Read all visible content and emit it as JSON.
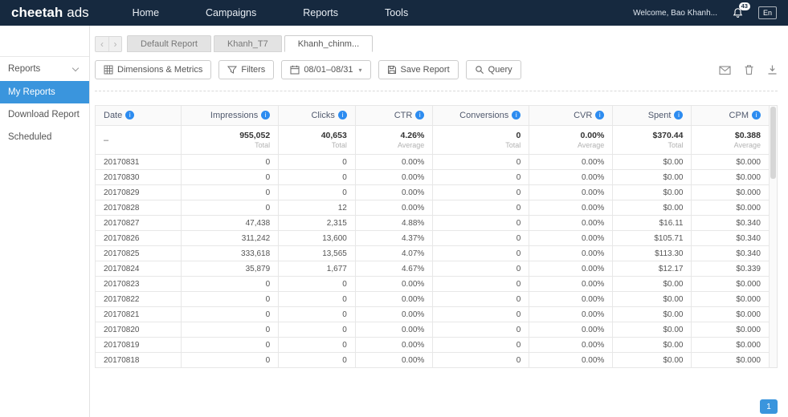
{
  "colors": {
    "navbar_bg": "#16293f",
    "accent": "#3a95dd",
    "info_icon": "#2d8cf0"
  },
  "navbar": {
    "brand_bold": "cheetah",
    "brand_light": "ads",
    "items": [
      {
        "label": "Home"
      },
      {
        "label": "Campaigns"
      },
      {
        "label": "Reports"
      },
      {
        "label": "Tools"
      }
    ],
    "welcome": "Welcome,  Bao Khanh...",
    "notification_count": "43",
    "language": "En"
  },
  "sidebar": {
    "section": "Reports",
    "items": [
      {
        "label": "My Reports",
        "active": true
      },
      {
        "label": "Download Report",
        "active": false
      },
      {
        "label": "Scheduled",
        "active": false
      }
    ]
  },
  "tabs": [
    {
      "label": "Default Report",
      "active": false
    },
    {
      "label": "Khanh_T7",
      "active": false
    },
    {
      "label": "Khanh_chinm...",
      "active": true
    }
  ],
  "toolbar": {
    "dimensions_metrics_label": "Dimensions & Metrics",
    "filters_label": "Filters",
    "date_range_label": "08/01–08/31",
    "save_report_label": "Save Report",
    "query_label": "Query"
  },
  "table": {
    "columns": [
      "Date",
      "Impressions",
      "Clicks",
      "CTR",
      "Conversions",
      "CVR",
      "Spent",
      "CPM"
    ],
    "summary": {
      "date": "–",
      "values": [
        "955,052",
        "40,653",
        "4.26%",
        "0",
        "0.00%",
        "$370.44",
        "$0.388"
      ],
      "sublabels": [
        "Total",
        "Total",
        "Average",
        "Total",
        "Average",
        "Total",
        "Average"
      ]
    },
    "rows": [
      [
        "20170831",
        "0",
        "0",
        "0.00%",
        "0",
        "0.00%",
        "$0.00",
        "$0.000"
      ],
      [
        "20170830",
        "0",
        "0",
        "0.00%",
        "0",
        "0.00%",
        "$0.00",
        "$0.000"
      ],
      [
        "20170829",
        "0",
        "0",
        "0.00%",
        "0",
        "0.00%",
        "$0.00",
        "$0.000"
      ],
      [
        "20170828",
        "0",
        "12",
        "0.00%",
        "0",
        "0.00%",
        "$0.00",
        "$0.000"
      ],
      [
        "20170827",
        "47,438",
        "2,315",
        "4.88%",
        "0",
        "0.00%",
        "$16.11",
        "$0.340"
      ],
      [
        "20170826",
        "311,242",
        "13,600",
        "4.37%",
        "0",
        "0.00%",
        "$105.71",
        "$0.340"
      ],
      [
        "20170825",
        "333,618",
        "13,565",
        "4.07%",
        "0",
        "0.00%",
        "$113.30",
        "$0.340"
      ],
      [
        "20170824",
        "35,879",
        "1,677",
        "4.67%",
        "0",
        "0.00%",
        "$12.17",
        "$0.339"
      ],
      [
        "20170823",
        "0",
        "0",
        "0.00%",
        "0",
        "0.00%",
        "$0.00",
        "$0.000"
      ],
      [
        "20170822",
        "0",
        "0",
        "0.00%",
        "0",
        "0.00%",
        "$0.00",
        "$0.000"
      ],
      [
        "20170821",
        "0",
        "0",
        "0.00%",
        "0",
        "0.00%",
        "$0.00",
        "$0.000"
      ],
      [
        "20170820",
        "0",
        "0",
        "0.00%",
        "0",
        "0.00%",
        "$0.00",
        "$0.000"
      ],
      [
        "20170819",
        "0",
        "0",
        "0.00%",
        "0",
        "0.00%",
        "$0.00",
        "$0.000"
      ],
      [
        "20170818",
        "0",
        "0",
        "0.00%",
        "0",
        "0.00%",
        "$0.00",
        "$0.000"
      ]
    ]
  },
  "pagination": {
    "page": "1"
  }
}
